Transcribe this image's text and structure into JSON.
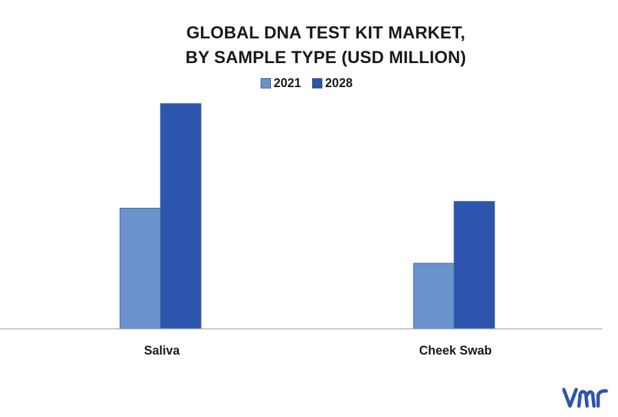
{
  "chart_data": {
    "type": "bar",
    "title_lines": [
      "GLOBAL DNA TEST KIT MARKET,",
      "BY SAMPLE TYPE (USD MILLION)"
    ],
    "categories": [
      "Saliva",
      "Cheek Swab"
    ],
    "series": [
      {
        "name": "2021",
        "color": "#6a93cb",
        "values": [
          53.5,
          29
        ]
      },
      {
        "name": "2028",
        "color": "#2e55ad",
        "values": [
          100,
          56.5
        ]
      }
    ],
    "ylim": [
      0,
      100
    ],
    "value_unit": "relative (no axis printed)",
    "grid": false,
    "legend_position": "top-center"
  },
  "brand": {
    "logo_icon": "vmr-logo-icon",
    "logo_color": "#2e55ad"
  },
  "colors": {
    "axis": "#b0b0b0"
  }
}
